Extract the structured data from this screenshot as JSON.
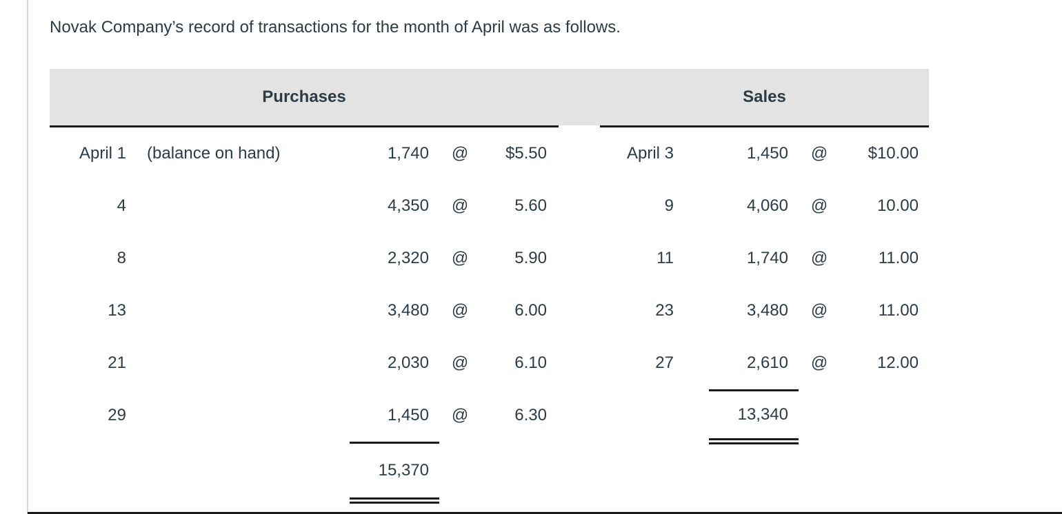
{
  "intro": "Novak Company’s record of transactions for the month of April was as follows.",
  "purchases": {
    "header": "Purchases",
    "rows": [
      {
        "date": "April 1",
        "note": "(balance on hand)",
        "qty": "1,740",
        "at": "@",
        "price": "$5.50"
      },
      {
        "date": "4",
        "note": "",
        "qty": "4,350",
        "at": "@",
        "price": "5.60"
      },
      {
        "date": "8",
        "note": "",
        "qty": "2,320",
        "at": "@",
        "price": "5.90"
      },
      {
        "date": "13",
        "note": "",
        "qty": "3,480",
        "at": "@",
        "price": "6.00"
      },
      {
        "date": "21",
        "note": "",
        "qty": "2,030",
        "at": "@",
        "price": "6.10"
      },
      {
        "date": "29",
        "note": "",
        "qty": "1,450",
        "at": "@",
        "price": "6.30"
      }
    ],
    "total": "15,370"
  },
  "sales": {
    "header": "Sales",
    "rows": [
      {
        "date": "April 3",
        "qty": "1,450",
        "at": "@",
        "price": "$10.00"
      },
      {
        "date": "9",
        "qty": "4,060",
        "at": "@",
        "price": "10.00"
      },
      {
        "date": "11",
        "qty": "1,740",
        "at": "@",
        "price": "11.00"
      },
      {
        "date": "23",
        "qty": "3,480",
        "at": "@",
        "price": "11.00"
      },
      {
        "date": "27",
        "qty": "2,610",
        "at": "@",
        "price": "12.00"
      }
    ],
    "total": "13,340"
  },
  "colors": {
    "text": "#2d3b45",
    "header_bg": "#e3e3e3",
    "rule": "#1b1b1b"
  }
}
